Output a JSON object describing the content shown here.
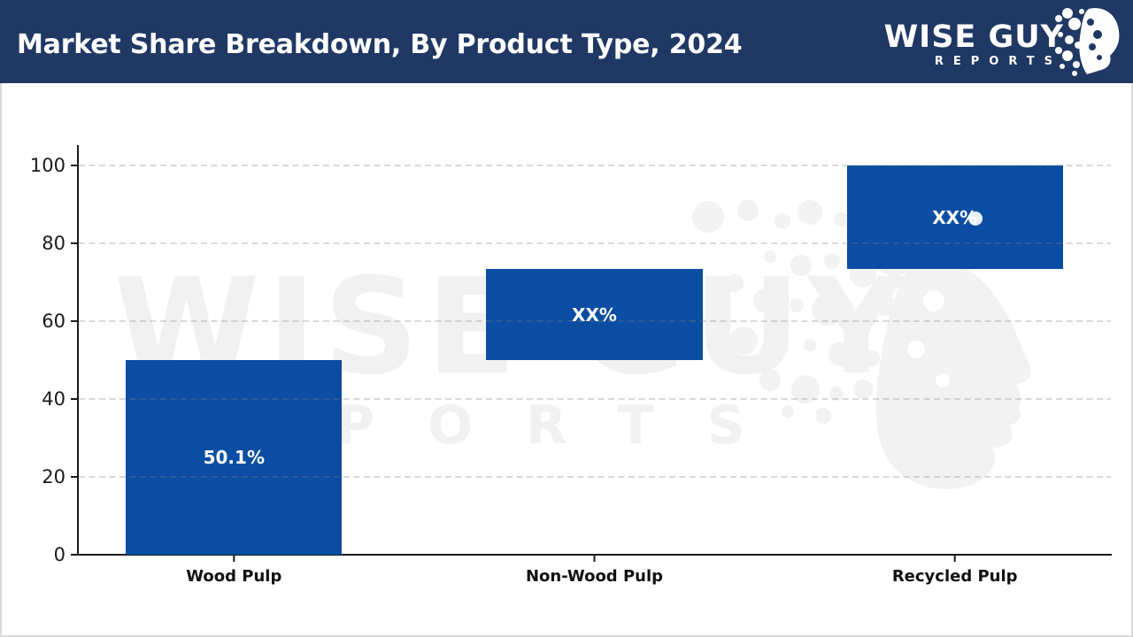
{
  "page": {
    "background": "#ffffff",
    "border_color": "#d9d9d9"
  },
  "header": {
    "title": "Market Share Breakdown, By Product Type, 2024",
    "background": "#1f3864",
    "text_color": "#ffffff",
    "logo": {
      "line1": "WISE GUY",
      "line2": "REPORTS"
    }
  },
  "watermark": {
    "line1": "WISE GUY",
    "line2": "REPORTS",
    "color": "#f1f1f2"
  },
  "chart_data": {
    "type": "bar",
    "subtype": "floating-segment-percent",
    "title": "Market Share Breakdown, By Product Type, 2024",
    "categories": [
      "Wood Pulp",
      "Non-Wood Pulp",
      "Recycled Pulp"
    ],
    "bars": [
      {
        "category": "Wood Pulp",
        "start": 0,
        "end": 50.1,
        "label": "50.1%"
      },
      {
        "category": "Non-Wood Pulp",
        "start": 50.1,
        "end": 73.3,
        "label": "XX%"
      },
      {
        "category": "Recycled Pulp",
        "start": 73.3,
        "end": 100,
        "label": "XX%"
      }
    ],
    "y_ticks": [
      0,
      20,
      40,
      60,
      80,
      100
    ],
    "ylim": [
      0,
      100
    ],
    "xlabel": "",
    "ylabel": "",
    "legend": "none",
    "grid": "horizontal dashed",
    "bar_color": "#0b4da2",
    "label_color": "#ffffff",
    "axis_color": "#1a1a1a",
    "grid_color": "#d9d9d9",
    "tick_label_color": "#1a1a1a"
  }
}
